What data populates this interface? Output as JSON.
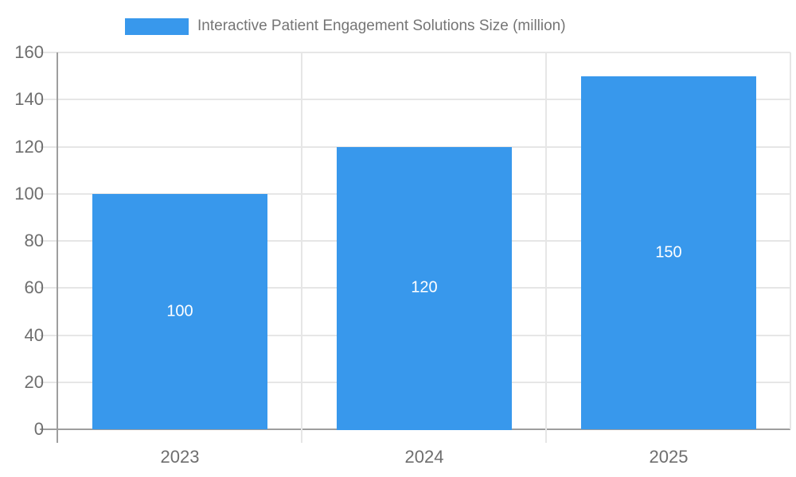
{
  "legend": {
    "label": "Interactive Patient Engagement Solutions Size (million)"
  },
  "chart_data": {
    "type": "bar",
    "title": "Interactive Patient Engagement Solutions Size (million)",
    "categories": [
      "2023",
      "2024",
      "2025"
    ],
    "values": [
      100,
      120,
      150
    ],
    "data_labels": [
      "100",
      "120",
      "150"
    ],
    "series": [
      {
        "name": "Interactive Patient Engagement Solutions Size (million)",
        "values": [
          100,
          120,
          150
        ]
      }
    ],
    "xlabel": "",
    "ylabel": "",
    "ylim": [
      0,
      160
    ],
    "yticks": [
      0,
      20,
      40,
      60,
      80,
      100,
      120,
      140,
      160
    ],
    "grid": true,
    "legend_position": "top",
    "colors": {
      "bar": "#3898EC",
      "data_label": "#ffffff",
      "gridline": "#e6e6e6",
      "axis_line": "#9e9e9e",
      "tick_label": "#6e6e6e",
      "legend_text": "#757575"
    }
  }
}
